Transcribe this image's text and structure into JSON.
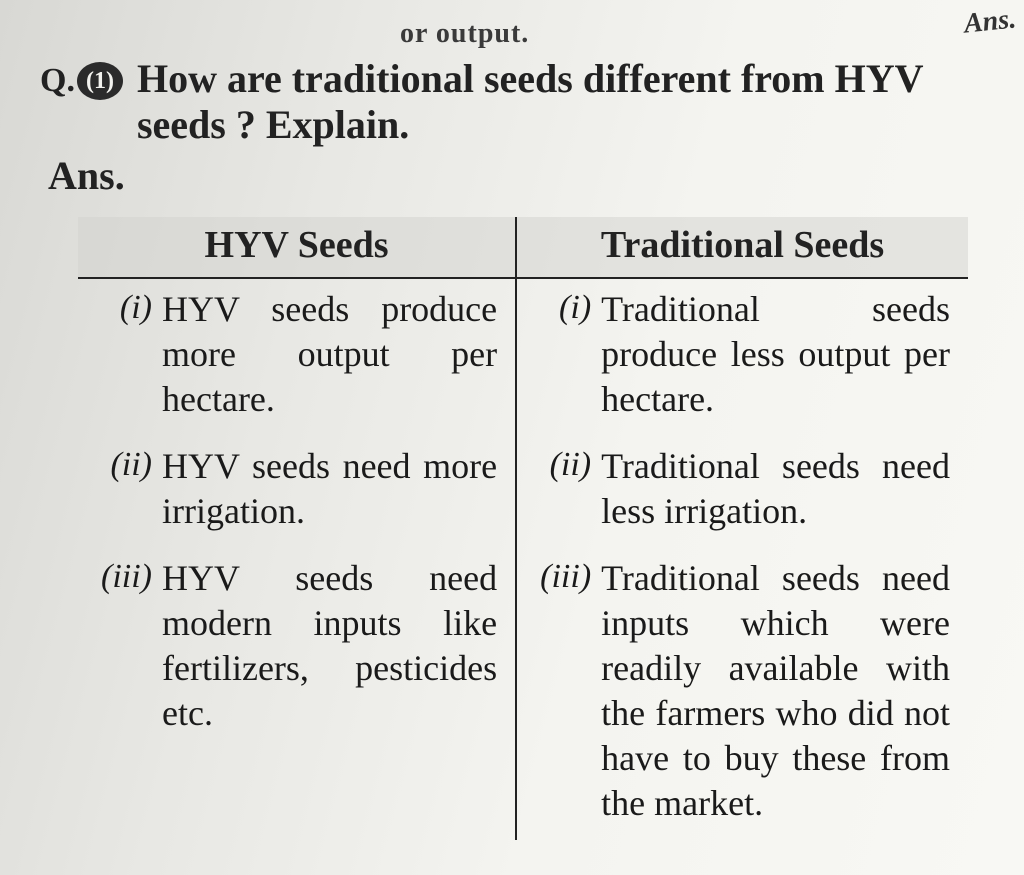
{
  "top_partial": "or output.",
  "question_number_letter": "Q.",
  "question_number_circle": "(1)",
  "question_text": "How are traditional seeds different from HYV seeds ? Explain.",
  "margin_note": "Ans.",
  "ans_label": "Ans.",
  "table": {
    "columns": [
      "HYV Seeds",
      "Traditional Seeds"
    ],
    "rows": [
      {
        "left_enum": "(i)",
        "left_text": "HYV seeds produce more output per hectare.",
        "right_enum": "(i)",
        "right_text": "Traditional seeds produce less output per hectare."
      },
      {
        "left_enum": "(ii)",
        "left_text": "HYV seeds need more irrigation.",
        "right_enum": "(ii)",
        "right_text": "Traditional seeds need less irrigation."
      },
      {
        "left_enum": "(iii)",
        "left_text": "HYV seeds need modern inputs like fertilizers, pesticides etc.",
        "right_enum": "(iii)",
        "right_text": "Traditional seeds need inputs which were readily available with the farmers who did not have to buy these from the market."
      }
    ]
  }
}
